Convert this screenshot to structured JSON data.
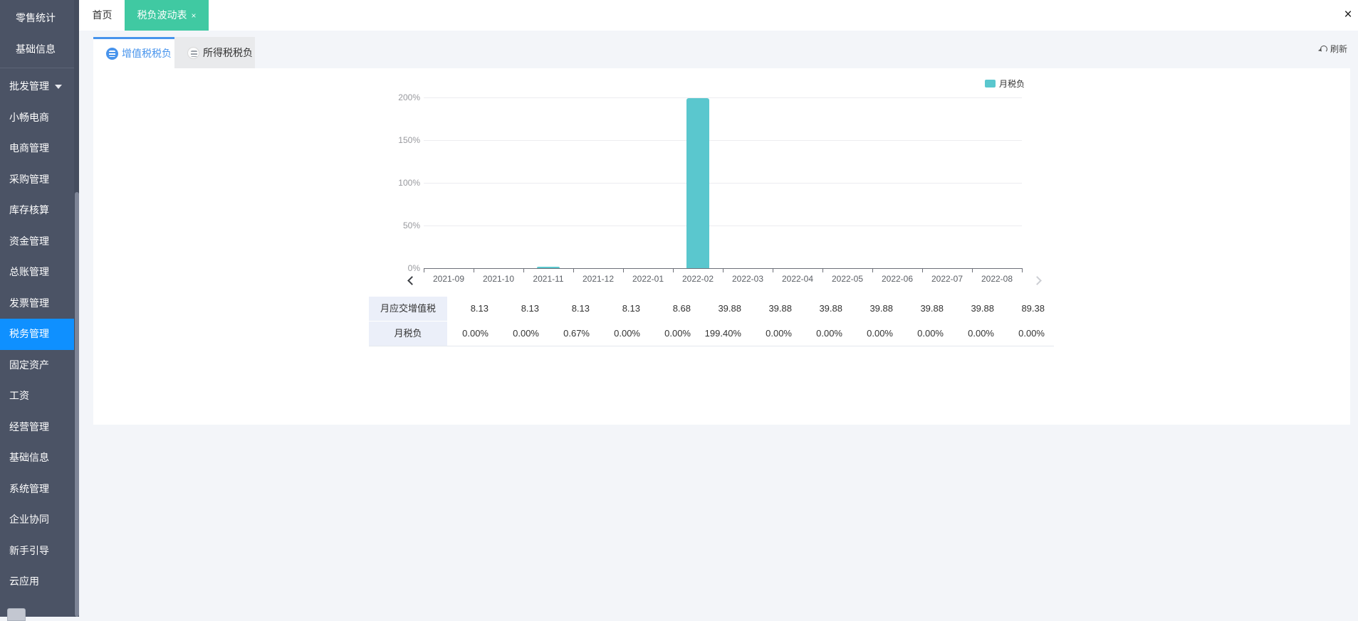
{
  "app": {
    "window_close_icon": "×"
  },
  "topbar": {
    "tabs": [
      {
        "label": "首页",
        "active": false
      },
      {
        "label": "税负波动表",
        "active": true,
        "close_icon": "×"
      }
    ]
  },
  "sidebar": {
    "items": [
      {
        "key": "retail-stats",
        "label": "零售统计",
        "indent": "lg"
      },
      {
        "key": "basic-info",
        "label": "基础信息",
        "indent": "lg"
      },
      {
        "divider": true
      },
      {
        "key": "wholesale-mgmt",
        "label": "批发管理",
        "caret": true
      },
      {
        "key": "xiaochang-ecommerce",
        "label": "小畅电商"
      },
      {
        "key": "ecommerce-mgmt",
        "label": "电商管理"
      },
      {
        "key": "purchase-mgmt",
        "label": "采购管理"
      },
      {
        "key": "inventory-accounting",
        "label": "库存核算"
      },
      {
        "key": "funds-mgmt",
        "label": "资金管理"
      },
      {
        "key": "general-ledger",
        "label": "总账管理"
      },
      {
        "key": "invoice-mgmt",
        "label": "发票管理"
      },
      {
        "key": "tax-mgmt",
        "label": "税务管理",
        "active": true
      },
      {
        "key": "fixed-assets",
        "label": "固定资产"
      },
      {
        "key": "payroll",
        "label": "工资"
      },
      {
        "key": "operations-mgmt",
        "label": "经营管理"
      },
      {
        "key": "basic-info-2",
        "label": "基础信息"
      },
      {
        "key": "system-mgmt",
        "label": "系统管理"
      },
      {
        "key": "enterprise-collab",
        "label": "企业协同"
      },
      {
        "key": "beginner-guide",
        "label": "新手引导"
      },
      {
        "key": "cloud-apps",
        "label": "云应用"
      }
    ]
  },
  "content": {
    "tabs": [
      {
        "label": "增值税税负",
        "active": true
      },
      {
        "label": "所得税税负",
        "active": false
      }
    ],
    "refresh_label": "刷新"
  },
  "chart_data": {
    "type": "bar",
    "title": "",
    "categories": [
      "2021-09",
      "2021-10",
      "2021-11",
      "2021-12",
      "2022-01",
      "2022-02",
      "2022-03",
      "2022-04",
      "2022-05",
      "2022-06",
      "2022-07",
      "2022-08"
    ],
    "series": [
      {
        "name": "月税负",
        "values": [
          0,
          0,
          0.67,
          0,
          0,
          199.4,
          0,
          0,
          0,
          0,
          0,
          0
        ],
        "unit": "%"
      }
    ],
    "legend": {
      "entries": [
        "月税负"
      ],
      "position": "top-right",
      "color": "#5ac7ce"
    },
    "xlabel": "",
    "ylabel": "",
    "ylim": [
      0,
      200
    ],
    "yticks": [
      0,
      50,
      100,
      150,
      200
    ],
    "ytick_suffix": "%",
    "grid": true,
    "pagination": {
      "prev_enabled": true,
      "next_enabled": false
    }
  },
  "table": {
    "rows": [
      {
        "label": "月应交增值税",
        "values": [
          "8.13",
          "8.13",
          "8.13",
          "8.13",
          "8.68",
          "39.88",
          "39.88",
          "39.88",
          "39.88",
          "39.88",
          "39.88",
          "89.38"
        ]
      },
      {
        "label": "月税负",
        "values": [
          "0.00%",
          "0.00%",
          "0.67%",
          "0.00%",
          "0.00%",
          "199.40%",
          "0.00%",
          "0.00%",
          "0.00%",
          "0.00%",
          "0.00%",
          "0.00%"
        ]
      }
    ]
  },
  "colors": {
    "sidebar_bg": "#4b5365",
    "sidebar_active_blue": "#0f90ff",
    "topbar_tab_green": "#40c9a2",
    "inner_tab_blue": "#4894ec",
    "bar_teal": "#5ac7ce",
    "table_label_bg": "#ebeff9",
    "page_bg": "#f3f5f9"
  }
}
